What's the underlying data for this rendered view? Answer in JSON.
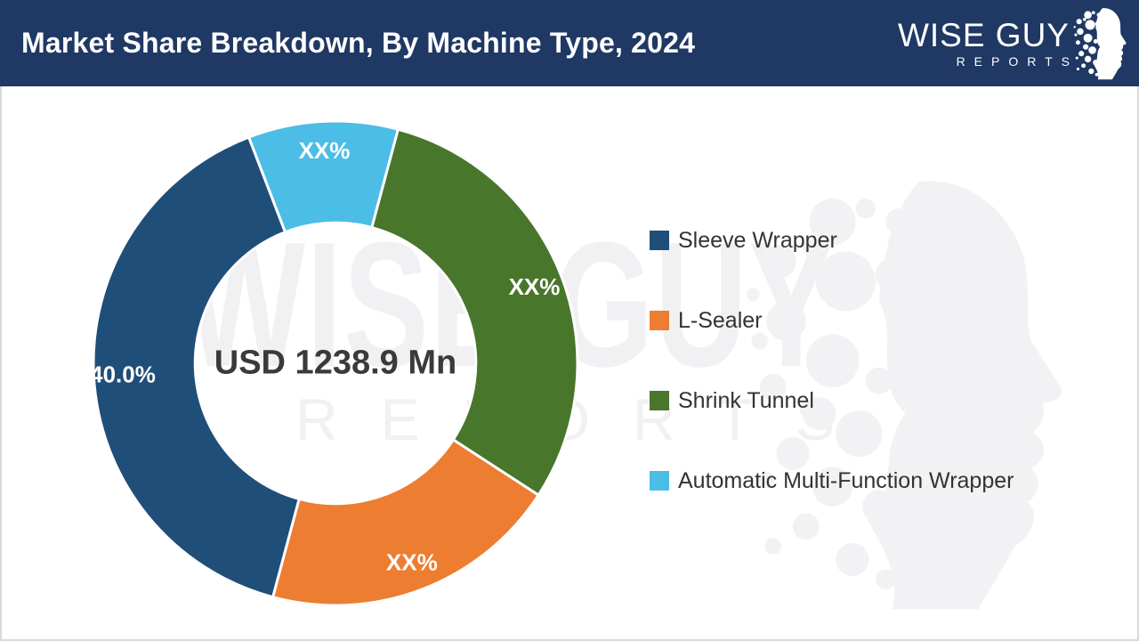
{
  "header": {
    "title": "Market Share Breakdown, By Machine Type, 2024",
    "logo_line1": "WISE GUY",
    "logo_line2": "REPORTS"
  },
  "watermark": {
    "line1": "WISE GUY",
    "line2": "REPORTS"
  },
  "chart_data": {
    "type": "donut",
    "title": "Market Share Breakdown, By Machine Type, 2024",
    "center_label": "USD 1238.9 Mn",
    "legend_position": "right",
    "start_angle_deg": -21,
    "inner_radius_ratio": 0.58,
    "label_radius_ratio": 0.88,
    "segments": [
      {
        "label": "Automatic Multi-Function Wrapper",
        "display_value": "XX%",
        "percent": 10,
        "color": "#4bbde6"
      },
      {
        "label": "Shrink Tunnel",
        "display_value": "XX%",
        "percent": 30,
        "color": "#48762b"
      },
      {
        "label": "L-Sealer",
        "display_value": "XX%",
        "percent": 20,
        "color": "#ed7d31"
      },
      {
        "label": "Sleeve Wrapper",
        "display_value": "40.0%",
        "percent": 40,
        "color": "#1f4e79"
      }
    ]
  },
  "colors": {
    "header_bg": "#1f3864",
    "center_label_color": "#3a3a3a",
    "legend_text": "#333333",
    "watermark": "#f1f1f3",
    "border": "#d9d9d9"
  }
}
